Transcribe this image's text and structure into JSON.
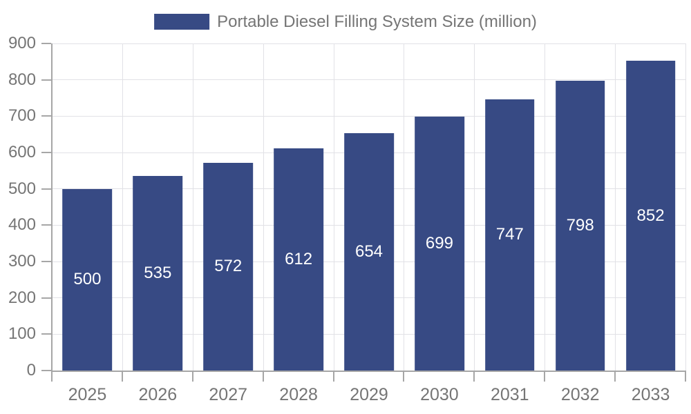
{
  "chart_data": {
    "type": "bar",
    "title": "Portable Diesel Filling System Size (million)",
    "legend": [
      "Portable Diesel Filling System Size (million)"
    ],
    "legend_position": "top-center",
    "categories": [
      "2025",
      "2026",
      "2027",
      "2028",
      "2029",
      "2030",
      "2031",
      "2032",
      "2033"
    ],
    "values": [
      500,
      535,
      572,
      612,
      654,
      699,
      747,
      798,
      852
    ],
    "xlabel": "",
    "ylabel": "",
    "ylim": [
      0,
      900
    ],
    "ytick_interval": 100,
    "yticks": [
      0,
      100,
      200,
      300,
      400,
      500,
      600,
      700,
      800,
      900
    ],
    "grid": true,
    "bar_value_labels_position": "inside-center",
    "colors": {
      "bar": "#374A84",
      "bar_value_label": "#FFFFFF",
      "axis_text": "#757575",
      "axis_line": "#A6A6A6",
      "gridline": "#E1E1E6",
      "background": "#FFFFFF"
    }
  }
}
